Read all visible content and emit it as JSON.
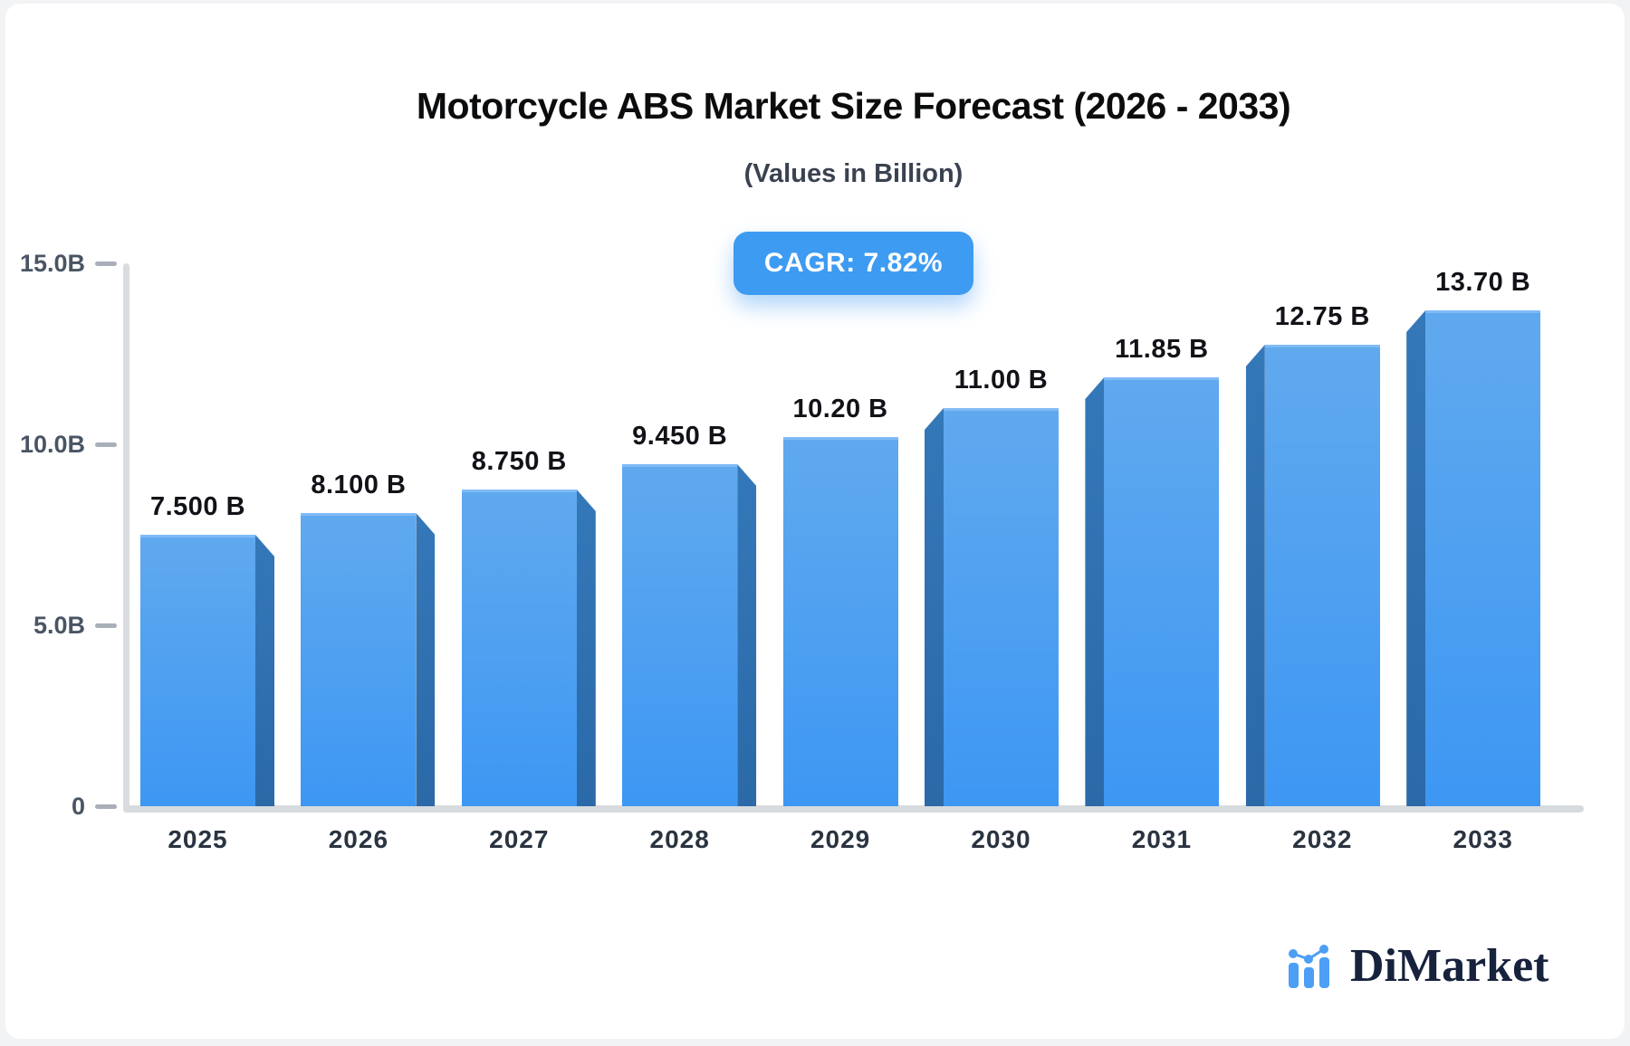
{
  "page": {
    "background": "#f2f3f5",
    "card_background": "#ffffff"
  },
  "header": {
    "title": "Motorcycle ABS Market Size Forecast (2026 - 2033)",
    "subtitle": "(Values in Billion)",
    "cagr_badge": "CAGR: 7.82%"
  },
  "chart_data": {
    "type": "bar",
    "title": "Motorcycle ABS Market Size Forecast (2026 - 2033)",
    "subtitle": "(Values in Billion)",
    "annotation": "CAGR: 7.82%",
    "unit": "Billion",
    "categories": [
      "2025",
      "2026",
      "2027",
      "2028",
      "2029",
      "2030",
      "2031",
      "2032",
      "2033"
    ],
    "values": [
      7.5,
      8.1,
      8.75,
      9.45,
      10.2,
      11.0,
      11.85,
      12.75,
      13.7
    ],
    "value_labels": [
      "7.500 B",
      "8.100 B",
      "8.750 B",
      "9.450 B",
      "10.20 B",
      "11.00 B",
      "11.85 B",
      "12.75 B",
      "13.70 B"
    ],
    "ylim": [
      0,
      15
    ],
    "yticks": [
      {
        "value": 0,
        "label": "0"
      },
      {
        "value": 5,
        "label": "5.0B"
      },
      {
        "value": 10,
        "label": "10.0B"
      },
      {
        "value": 15,
        "label": "15.0B"
      }
    ],
    "grid": false,
    "legend": false,
    "colors": {
      "bar_gradient_top": "#60a9ee",
      "bar_gradient_bottom": "#3d97f3",
      "bar_side_3d": "#2f72b2",
      "badge_background": "#3d9bf2",
      "badge_text": "#ffffff",
      "axis_line": "#d8dbde",
      "tick_mark": "#a8afb9",
      "y_tick_text": "#4a5564",
      "x_tick_text": "#2a3441",
      "value_label_text": "#111318"
    }
  },
  "footer": {
    "logo_text": "DiMarket",
    "logo_mark_color": "#4d9ff5",
    "logo_text_color": "#17223c"
  }
}
